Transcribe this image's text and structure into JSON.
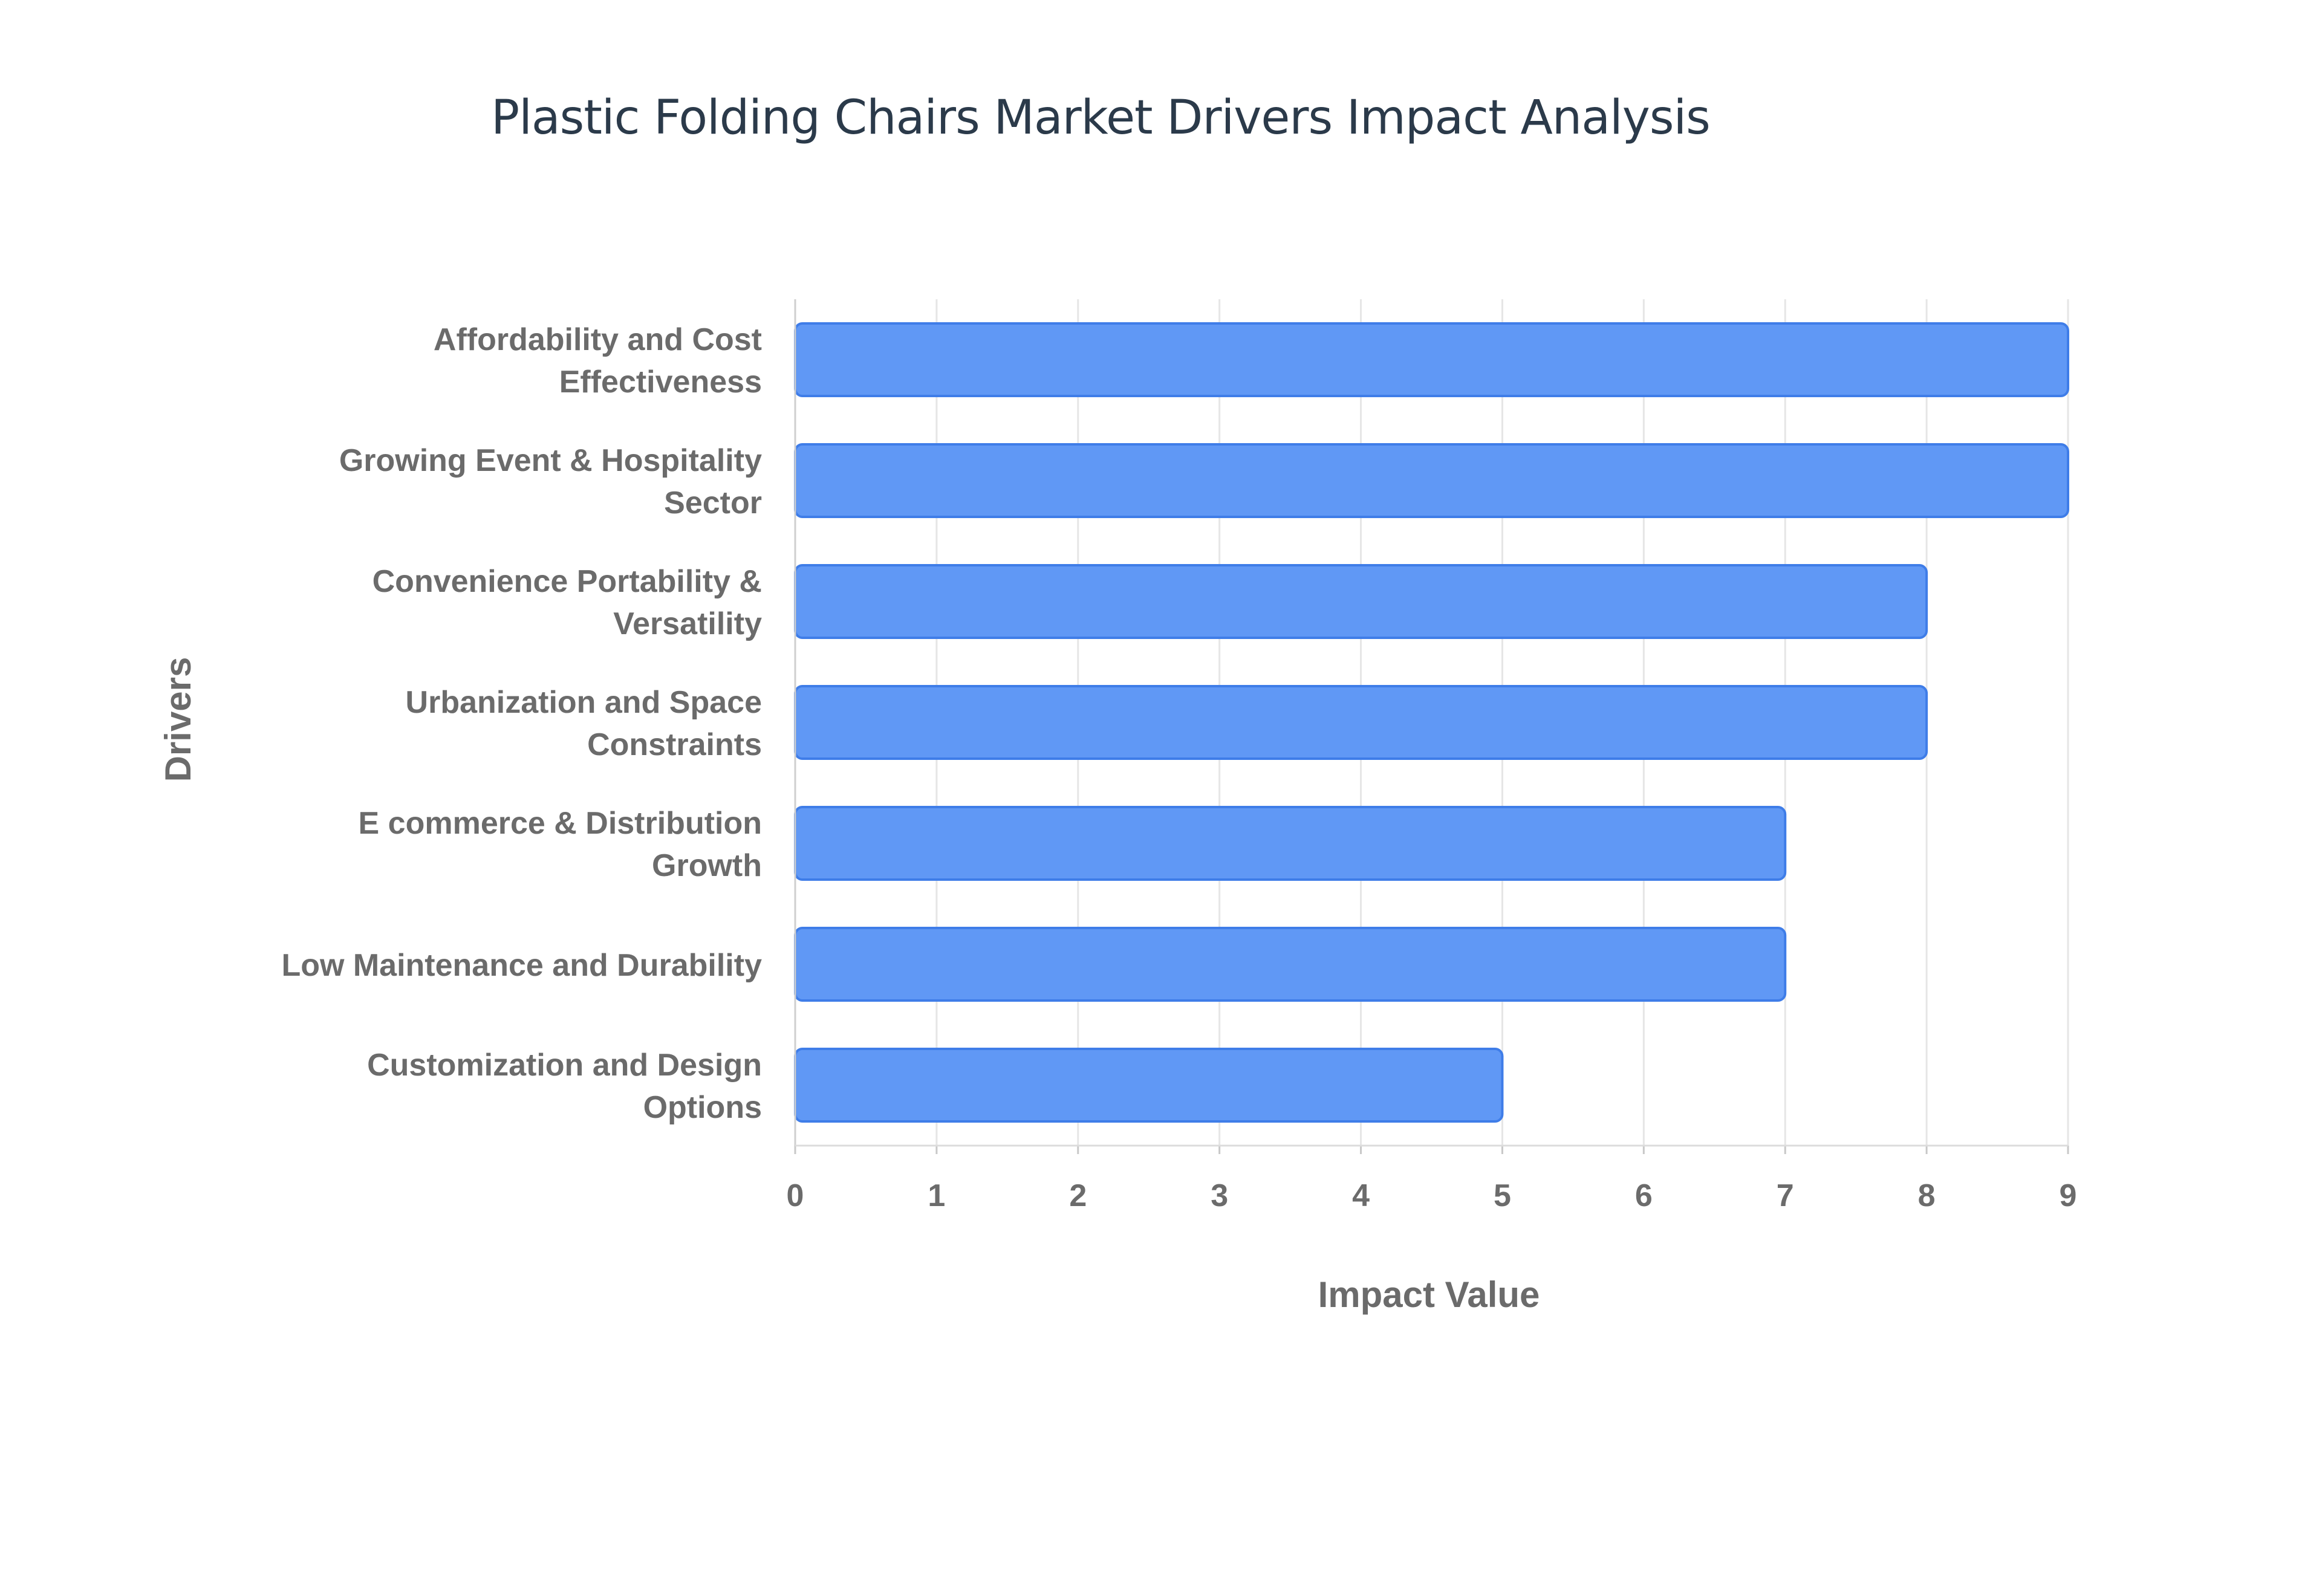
{
  "chart_data": {
    "type": "bar",
    "orientation": "horizontal",
    "title": "Plastic Folding Chairs Market Drivers Impact Analysis",
    "xlabel": "Impact Value",
    "ylabel": "Drivers",
    "categories": [
      [
        "Affordability and Cost",
        "Effectiveness"
      ],
      [
        "Growing Event & Hospitality",
        "Sector"
      ],
      [
        "Convenience Portability &",
        "Versatility"
      ],
      [
        "Urbanization and Space",
        "Constraints"
      ],
      [
        "E commerce & Distribution",
        "Growth"
      ],
      [
        "Low Maintenance and Durability"
      ],
      [
        "Customization and Design",
        "Options"
      ]
    ],
    "values": [
      9,
      9,
      8,
      8,
      7,
      7,
      5
    ],
    "xlim": [
      0,
      9
    ],
    "xticks": [
      "0",
      "1",
      "2",
      "3",
      "4",
      "5",
      "6",
      "7",
      "8",
      "9"
    ],
    "grid": true,
    "bar_color": "#6098f5",
    "bar_edge_color": "#3f7de8"
  }
}
